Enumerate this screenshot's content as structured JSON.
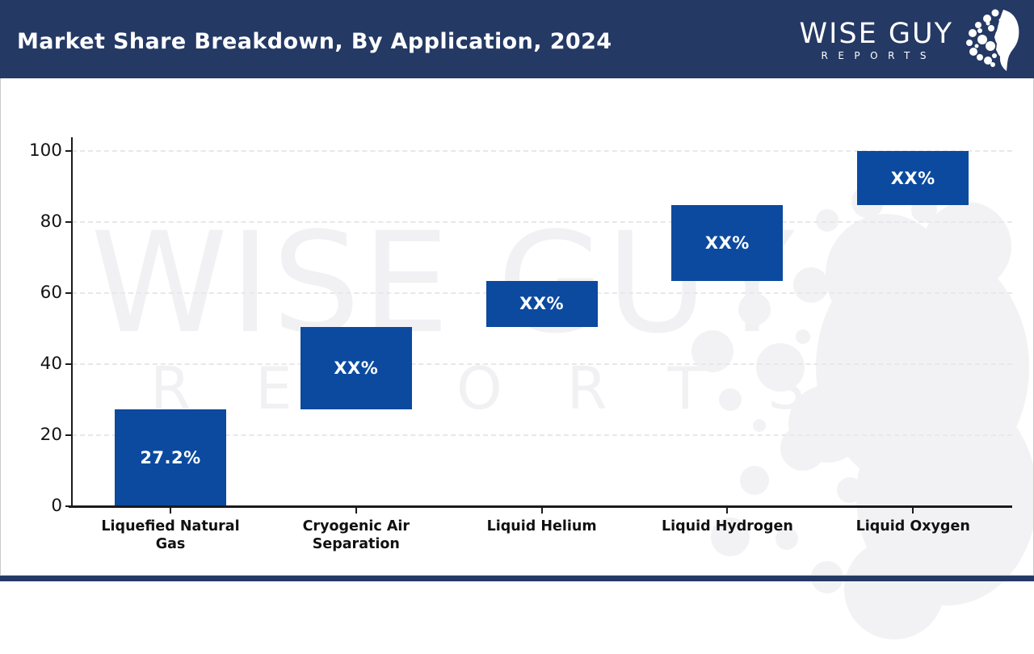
{
  "header": {
    "title": "Market Share Breakdown, By Application, 2024",
    "logo_line1": "WISE GUY",
    "logo_line2": "REPORTS"
  },
  "watermark": {
    "line1": "WISE GUY",
    "line2": "REPORTS"
  },
  "chart_data": {
    "type": "bar",
    "subtype": "waterfall",
    "title": "Market Share Breakdown, By Application, 2024",
    "categories": [
      "Liquefied Natural Gas",
      "Cryogenic Air Separation",
      "Liquid Helium",
      "Liquid Hydrogen",
      "Liquid Oxygen"
    ],
    "category_lines": [
      [
        "Liquefied Natural",
        "Gas"
      ],
      [
        "Cryogenic Air",
        "Separation"
      ],
      [
        "Liquid Helium"
      ],
      [
        "Liquid Hydrogen"
      ],
      [
        "Liquid Oxygen"
      ]
    ],
    "segments": [
      {
        "category": "Liquefied Natural Gas",
        "start": 0,
        "end": 27.2,
        "label": "27.2%"
      },
      {
        "category": "Cryogenic Air Separation",
        "start": 27.2,
        "end": 50.5,
        "label": "XX%"
      },
      {
        "category": "Liquid Helium",
        "start": 50.5,
        "end": 63.3,
        "label": "XX%"
      },
      {
        "category": "Liquid Hydrogen",
        "start": 63.3,
        "end": 84.7,
        "label": "XX%"
      },
      {
        "category": "Liquid Oxygen",
        "start": 84.7,
        "end": 100,
        "label": "XX%"
      }
    ],
    "ylabel": "",
    "xlabel": "",
    "ylim": [
      0,
      100
    ],
    "yticks": [
      0,
      20,
      40,
      60,
      80,
      100
    ],
    "grid": "horizontal-dashed",
    "legend": "none",
    "bar_color": "#0b4a9f",
    "bar_label_color": "#ffffff"
  },
  "colors": {
    "header_bg": "#243964",
    "footer_bg": "#243964",
    "bar": "#0b4a9f",
    "watermark": "#f1f1f4",
    "gridline": "#e8e8ea",
    "axis": "#1a1a1a",
    "background": "#ffffff"
  }
}
